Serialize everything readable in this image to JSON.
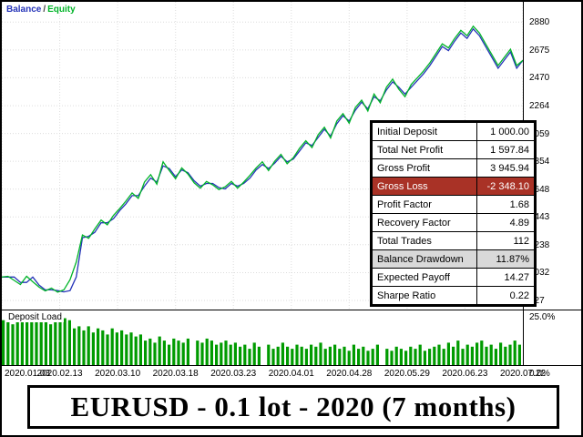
{
  "legend": {
    "balance": "Balance",
    "separator": "/",
    "equity": "Equity"
  },
  "banner": {
    "text": "EURUSD - 0.1 lot - 2020 (7 months)"
  },
  "colors": {
    "balance_line": "#2433b8",
    "equity_line": "#00b428",
    "deposit_bar": "#009b00",
    "grid": "#dcdcdc",
    "axis_text": "#000000",
    "loss_row_bg": "#a93226",
    "loss_row_text": "#ffffff",
    "drawdown_row_bg": "#d9d9d9",
    "border": "#000000"
  },
  "stats": {
    "rows": [
      {
        "label": "Initial Deposit",
        "value": "1 000.00",
        "highlight": "none"
      },
      {
        "label": "Total Net Profit",
        "value": "1 597.84",
        "highlight": "none"
      },
      {
        "label": "Gross Profit",
        "value": "3 945.94",
        "highlight": "none"
      },
      {
        "label": "Gross Loss",
        "value": "-2 348.10",
        "highlight": "red"
      },
      {
        "label": "Profit Factor",
        "value": "1.68",
        "highlight": "none"
      },
      {
        "label": "Recovery Factor",
        "value": "4.89",
        "highlight": "none"
      },
      {
        "label": "Total Trades",
        "value": "112",
        "highlight": "none"
      },
      {
        "label": "Balance Drawdown",
        "value": "11.87%",
        "highlight": "gray"
      },
      {
        "label": "Expected Payoff",
        "value": "14.27",
        "highlight": "none"
      },
      {
        "label": "Sharpe Ratio",
        "value": "0.22",
        "highlight": "none"
      }
    ]
  },
  "chart_data": [
    {
      "type": "line",
      "title": "Balance / Equity",
      "legend_position": "top-left",
      "grid": true,
      "y_ticks": [
        2880,
        2675,
        2470,
        2264,
        2059,
        1854,
        1648,
        1443,
        1238,
        1032,
        827
      ],
      "y_range": [
        760,
        3030
      ],
      "x_tick_labels": [
        "2020.01.03",
        "2020.02.13",
        "2020.03.10",
        "2020.03.18",
        "2020.03.23",
        "2020.04.01",
        "2020.04.28",
        "2020.05.29",
        "2020.06.23",
        "2020.07.22"
      ],
      "series": [
        {
          "name": "Balance",
          "color": "#2433b8",
          "values": [
            1000,
            1000,
            1000,
            960,
            960,
            1000,
            940,
            905,
            905,
            900,
            890,
            900,
            1000,
            1290,
            1300,
            1330,
            1400,
            1400,
            1430,
            1490,
            1540,
            1600,
            1600,
            1670,
            1730,
            1700,
            1820,
            1800,
            1740,
            1790,
            1770,
            1710,
            1670,
            1690,
            1690,
            1660,
            1650,
            1690,
            1670,
            1690,
            1730,
            1790,
            1830,
            1800,
            1840,
            1890,
            1850,
            1870,
            1930,
            1990,
            1970,
            2030,
            2090,
            2040,
            2130,
            2190,
            2150,
            2230,
            2290,
            2240,
            2330,
            2300,
            2380,
            2440,
            2400,
            2350,
            2400,
            2450,
            2500,
            2560,
            2630,
            2700,
            2670,
            2740,
            2800,
            2760,
            2830,
            2780,
            2700,
            2620,
            2540,
            2600,
            2660,
            2540,
            2598
          ]
        },
        {
          "name": "Equity",
          "color": "#00b428",
          "values": [
            1000,
            1005,
            975,
            945,
            1005,
            965,
            925,
            898,
            918,
            888,
            905,
            980,
            1110,
            1310,
            1285,
            1355,
            1420,
            1385,
            1455,
            1505,
            1560,
            1620,
            1580,
            1700,
            1755,
            1685,
            1850,
            1785,
            1725,
            1805,
            1760,
            1695,
            1655,
            1705,
            1680,
            1645,
            1665,
            1705,
            1655,
            1700,
            1750,
            1805,
            1850,
            1785,
            1855,
            1905,
            1835,
            1880,
            1950,
            2005,
            1955,
            2050,
            2105,
            2025,
            2150,
            2205,
            2135,
            2250,
            2305,
            2225,
            2350,
            2285,
            2400,
            2460,
            2385,
            2330,
            2420,
            2470,
            2520,
            2580,
            2650,
            2720,
            2690,
            2760,
            2820,
            2780,
            2850,
            2800,
            2720,
            2640,
            2560,
            2620,
            2680,
            2560,
            2598
          ]
        }
      ]
    },
    {
      "type": "bar",
      "title": "Deposit Load",
      "ylabel_top": "25.0%",
      "ylabel_bottom": "0.0%",
      "ylim": [
        0,
        25
      ],
      "values": [
        22,
        24,
        20,
        23,
        25,
        21,
        24,
        22,
        23,
        25,
        20,
        24,
        21,
        23,
        22,
        18,
        19,
        17,
        19,
        16,
        18,
        17,
        15,
        18,
        16,
        17,
        15,
        16,
        14,
        15,
        12,
        13,
        11,
        14,
        12,
        10,
        13,
        12,
        11,
        13,
        0,
        12,
        11,
        13,
        12,
        10,
        11,
        12,
        10,
        11,
        9,
        10,
        8,
        11,
        9,
        0,
        10,
        8,
        9,
        11,
        9,
        8,
        10,
        9,
        8,
        10,
        9,
        11,
        8,
        9,
        10,
        8,
        9,
        7,
        10,
        8,
        9,
        7,
        8,
        10,
        0,
        8,
        7,
        9,
        8,
        7,
        9,
        8,
        10,
        7,
        8,
        9,
        10,
        8,
        11,
        9,
        12,
        8,
        10,
        9,
        11,
        12,
        9,
        10,
        8,
        11,
        9,
        10,
        12,
        10
      ]
    }
  ]
}
